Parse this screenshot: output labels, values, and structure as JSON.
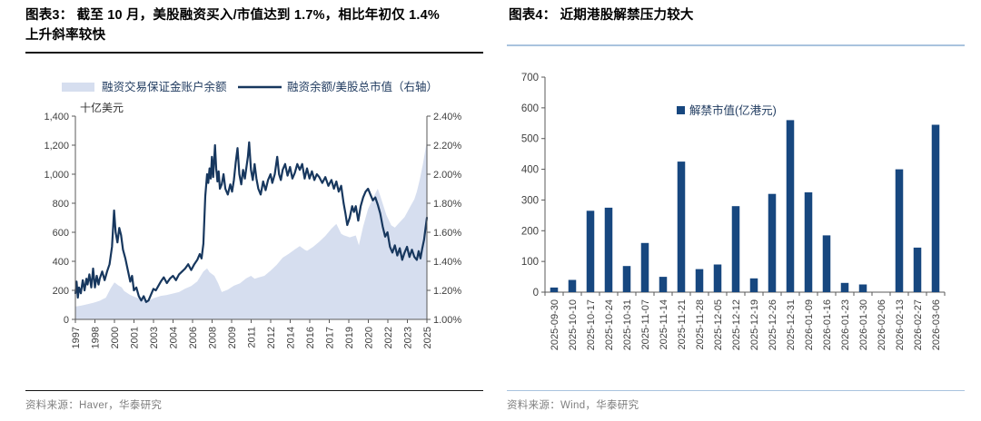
{
  "figure3": {
    "title": "图表3：  截至 10 月，美股融资买入/市值达到 1.7%，相比年初仅 1.4%\n上升斜率较快",
    "source": "资料来源：Haver，华泰研究"
  },
  "figure4": {
    "title": "图表4：  近期港股解禁压力较大",
    "source": "资料来源：Wind，华泰研究"
  },
  "colors": {
    "line_navy": "#17375e",
    "area_fill": "#d6deef",
    "bar_fill": "#17477f",
    "axis_stroke": "#595959",
    "tick_text": "#404040",
    "legend_text": "#1f3a5f",
    "rule_dark": "#141414",
    "rule_light": "#a9c3de",
    "source_gray": "#7f7f7f"
  },
  "chart_data": [
    {
      "type": "area",
      "subtype": "combo-area-line-dual-axis",
      "title": "截至10月，美股融资买入/市值达到1.7%，相比年初仅1.4%，上升斜率较快",
      "legend": [
        {
          "label": "融资交易保证金账户余额",
          "swatch": "area"
        },
        {
          "label": "融资余额/美股总市值（右轴）",
          "swatch": "line"
        }
      ],
      "x_range": [
        1997,
        2025.83
      ],
      "x_tick_labels": [
        "1997",
        "1998",
        "2000",
        "2001",
        "2003",
        "2004",
        "2006",
        "2008",
        "2009",
        "2011",
        "2012",
        "2014",
        "2016",
        "2017",
        "2019",
        "2020",
        "2022",
        "2023",
        "2025"
      ],
      "left_axis": {
        "title": "十亿美元",
        "min": 0,
        "max": 1400,
        "tick_labels": [
          "0",
          "200",
          "400",
          "600",
          "800",
          "1,000",
          "1,200",
          "1,400"
        ]
      },
      "right_axis": {
        "min": 1.0,
        "max": 2.4,
        "tick_labels": [
          "1.00%",
          "1.20%",
          "1.40%",
          "1.60%",
          "1.80%",
          "2.00%",
          "2.20%",
          "2.40%"
        ]
      },
      "series": [
        {
          "name": "融资交易保证金账户余额",
          "type": "area",
          "axis": "left",
          "points": [
            [
              1997.0,
              88
            ],
            [
              1997.5,
              95
            ],
            [
              1998.0,
              105
            ],
            [
              1998.5,
              115
            ],
            [
              1999.0,
              128
            ],
            [
              1999.5,
              150
            ],
            [
              1999.9,
              215
            ],
            [
              2000.2,
              255
            ],
            [
              2000.5,
              235
            ],
            [
              2000.8,
              220
            ],
            [
              2001.0,
              195
            ],
            [
              2001.5,
              168
            ],
            [
              2002.0,
              150
            ],
            [
              2002.5,
              138
            ],
            [
              2003.0,
              130
            ],
            [
              2003.5,
              148
            ],
            [
              2004.0,
              162
            ],
            [
              2004.5,
              168
            ],
            [
              2005.0,
              178
            ],
            [
              2005.5,
              188
            ],
            [
              2006.0,
              212
            ],
            [
              2006.5,
              230
            ],
            [
              2007.0,
              262
            ],
            [
              2007.5,
              330
            ],
            [
              2007.8,
              352
            ],
            [
              2008.0,
              325
            ],
            [
              2008.4,
              300
            ],
            [
              2008.7,
              250
            ],
            [
              2009.0,
              188
            ],
            [
              2009.5,
              205
            ],
            [
              2010.0,
              232
            ],
            [
              2010.5,
              248
            ],
            [
              2011.0,
              282
            ],
            [
              2011.4,
              300
            ],
            [
              2011.7,
              280
            ],
            [
              2012.0,
              288
            ],
            [
              2012.5,
              300
            ],
            [
              2013.0,
              335
            ],
            [
              2013.5,
              375
            ],
            [
              2014.0,
              425
            ],
            [
              2014.5,
              452
            ],
            [
              2015.0,
              482
            ],
            [
              2015.4,
              505
            ],
            [
              2015.8,
              480
            ],
            [
              2016.0,
              472
            ],
            [
              2016.5,
              500
            ],
            [
              2017.0,
              535
            ],
            [
              2017.5,
              575
            ],
            [
              2018.0,
              625
            ],
            [
              2018.4,
              658
            ],
            [
              2018.8,
              590
            ],
            [
              2019.0,
              580
            ],
            [
              2019.5,
              565
            ],
            [
              2020.0,
              578
            ],
            [
              2020.25,
              510
            ],
            [
              2020.6,
              640
            ],
            [
              2021.0,
              760
            ],
            [
              2021.5,
              852
            ],
            [
              2021.8,
              900
            ],
            [
              2022.0,
              852
            ],
            [
              2022.5,
              720
            ],
            [
              2022.9,
              648
            ],
            [
              2023.2,
              632
            ],
            [
              2023.5,
              660
            ],
            [
              2024.0,
              705
            ],
            [
              2024.5,
              782
            ],
            [
              2024.8,
              828
            ],
            [
              2025.0,
              880
            ],
            [
              2025.25,
              965
            ],
            [
              2025.5,
              1070
            ],
            [
              2025.83,
              1230
            ]
          ]
        },
        {
          "name": "融资余额/美股总市值（右轴）",
          "type": "line",
          "axis": "right",
          "points": [
            [
              1997.0,
              1.18
            ],
            [
              1997.1,
              1.26
            ],
            [
              1997.2,
              1.15
            ],
            [
              1997.3,
              1.22
            ],
            [
              1997.45,
              1.18
            ],
            [
              1997.6,
              1.27
            ],
            [
              1997.75,
              1.2
            ],
            [
              1997.9,
              1.28
            ],
            [
              1998.0,
              1.24
            ],
            [
              1998.15,
              1.31
            ],
            [
              1998.3,
              1.22
            ],
            [
              1998.45,
              1.35
            ],
            [
              1998.6,
              1.22
            ],
            [
              1998.75,
              1.3
            ],
            [
              1998.9,
              1.24
            ],
            [
              1999.0,
              1.28
            ],
            [
              1999.2,
              1.33
            ],
            [
              1999.4,
              1.27
            ],
            [
              1999.6,
              1.33
            ],
            [
              1999.8,
              1.38
            ],
            [
              2000.0,
              1.5
            ],
            [
              2000.17,
              1.75
            ],
            [
              2000.3,
              1.6
            ],
            [
              2000.45,
              1.53
            ],
            [
              2000.6,
              1.63
            ],
            [
              2000.75,
              1.58
            ],
            [
              2000.9,
              1.48
            ],
            [
              2001.1,
              1.42
            ],
            [
              2001.3,
              1.34
            ],
            [
              2001.5,
              1.26
            ],
            [
              2001.65,
              1.3
            ],
            [
              2001.8,
              1.2
            ],
            [
              2002.0,
              1.22
            ],
            [
              2002.2,
              1.16
            ],
            [
              2002.4,
              1.13
            ],
            [
              2002.6,
              1.16
            ],
            [
              2002.8,
              1.12
            ],
            [
              2003.0,
              1.13
            ],
            [
              2003.2,
              1.17
            ],
            [
              2003.4,
              1.21
            ],
            [
              2003.6,
              1.2
            ],
            [
              2003.8,
              1.23
            ],
            [
              2004.0,
              1.26
            ],
            [
              2004.25,
              1.29
            ],
            [
              2004.5,
              1.25
            ],
            [
              2004.75,
              1.28
            ],
            [
              2005.0,
              1.3
            ],
            [
              2005.25,
              1.27
            ],
            [
              2005.5,
              1.31
            ],
            [
              2005.75,
              1.33
            ],
            [
              2006.0,
              1.35
            ],
            [
              2006.25,
              1.38
            ],
            [
              2006.5,
              1.34
            ],
            [
              2006.75,
              1.38
            ],
            [
              2007.0,
              1.41
            ],
            [
              2007.2,
              1.45
            ],
            [
              2007.35,
              1.42
            ],
            [
              2007.5,
              1.52
            ],
            [
              2007.65,
              1.85
            ],
            [
              2007.8,
              2.0
            ],
            [
              2007.9,
              1.94
            ],
            [
              2008.0,
              2.04
            ],
            [
              2008.1,
              1.97
            ],
            [
              2008.2,
              2.12
            ],
            [
              2008.3,
              1.98
            ],
            [
              2008.45,
              2.2
            ],
            [
              2008.55,
              2.04
            ],
            [
              2008.65,
              1.95
            ],
            [
              2008.75,
              2.02
            ],
            [
              2008.85,
              1.9
            ],
            [
              2009.0,
              1.93
            ],
            [
              2009.15,
              2.0
            ],
            [
              2009.3,
              1.9
            ],
            [
              2009.5,
              1.86
            ],
            [
              2009.7,
              1.93
            ],
            [
              2009.85,
              1.88
            ],
            [
              2010.0,
              1.96
            ],
            [
              2010.15,
              2.08
            ],
            [
              2010.3,
              2.18
            ],
            [
              2010.45,
              2.0
            ],
            [
              2010.6,
              1.93
            ],
            [
              2010.75,
              2.03
            ],
            [
              2010.9,
              1.97
            ],
            [
              2011.0,
              2.03
            ],
            [
              2011.15,
              2.12
            ],
            [
              2011.25,
              2.22
            ],
            [
              2011.4,
              2.03
            ],
            [
              2011.55,
              1.96
            ],
            [
              2011.7,
              2.07
            ],
            [
              2011.85,
              1.97
            ],
            [
              2012.0,
              1.9
            ],
            [
              2012.2,
              1.86
            ],
            [
              2012.4,
              1.95
            ],
            [
              2012.6,
              1.89
            ],
            [
              2012.8,
              1.96
            ],
            [
              2013.0,
              2.0
            ],
            [
              2013.15,
              1.94
            ],
            [
              2013.35,
              2.0
            ],
            [
              2013.55,
              2.12
            ],
            [
              2013.7,
              2.0
            ],
            [
              2013.85,
              1.96
            ],
            [
              2014.0,
              2.03
            ],
            [
              2014.2,
              2.07
            ],
            [
              2014.4,
              1.99
            ],
            [
              2014.6,
              2.05
            ],
            [
              2014.8,
              1.97
            ],
            [
              2015.0,
              2.01
            ],
            [
              2015.2,
              2.07
            ],
            [
              2015.4,
              2.03
            ],
            [
              2015.6,
              2.07
            ],
            [
              2015.8,
              1.97
            ],
            [
              2016.0,
              2.04
            ],
            [
              2016.2,
              1.97
            ],
            [
              2016.4,
              2.02
            ],
            [
              2016.6,
              1.96
            ],
            [
              2016.8,
              2.0
            ],
            [
              2017.0,
              1.98
            ],
            [
              2017.25,
              1.94
            ],
            [
              2017.5,
              1.98
            ],
            [
              2017.75,
              1.92
            ],
            [
              2018.0,
              1.96
            ],
            [
              2018.2,
              1.9
            ],
            [
              2018.4,
              1.95
            ],
            [
              2018.6,
              1.88
            ],
            [
              2018.8,
              1.92
            ],
            [
              2019.0,
              1.8
            ],
            [
              2019.15,
              1.73
            ],
            [
              2019.3,
              1.65
            ],
            [
              2019.5,
              1.7
            ],
            [
              2019.7,
              1.78
            ],
            [
              2019.85,
              1.74
            ],
            [
              2020.0,
              1.78
            ],
            [
              2020.2,
              1.68
            ],
            [
              2020.4,
              1.78
            ],
            [
              2020.6,
              1.84
            ],
            [
              2020.8,
              1.88
            ],
            [
              2021.0,
              1.9
            ],
            [
              2021.2,
              1.86
            ],
            [
              2021.4,
              1.82
            ],
            [
              2021.6,
              1.84
            ],
            [
              2021.8,
              1.79
            ],
            [
              2022.0,
              1.73
            ],
            [
              2022.2,
              1.64
            ],
            [
              2022.4,
              1.57
            ],
            [
              2022.6,
              1.6
            ],
            [
              2022.8,
              1.5
            ],
            [
              2023.0,
              1.46
            ],
            [
              2023.2,
              1.51
            ],
            [
              2023.4,
              1.44
            ],
            [
              2023.6,
              1.49
            ],
            [
              2023.8,
              1.41
            ],
            [
              2024.0,
              1.46
            ],
            [
              2024.2,
              1.5
            ],
            [
              2024.4,
              1.43
            ],
            [
              2024.6,
              1.48
            ],
            [
              2024.8,
              1.43
            ],
            [
              2025.0,
              1.41
            ],
            [
              2025.15,
              1.47
            ],
            [
              2025.3,
              1.42
            ],
            [
              2025.45,
              1.49
            ],
            [
              2025.6,
              1.55
            ],
            [
              2025.72,
              1.63
            ],
            [
              2025.83,
              1.7
            ]
          ]
        }
      ]
    },
    {
      "type": "bar",
      "title": "近期港股解禁压力较大",
      "legend": [
        "解禁市值(亿港元)"
      ],
      "categories": [
        "2025-09-30",
        "2025-10-10",
        "2025-10-17",
        "2025-10-24",
        "2025-10-31",
        "2025-11-07",
        "2025-11-14",
        "2025-11-21",
        "2025-11-28",
        "2025-12-05",
        "2025-12-12",
        "2025-12-19",
        "2025-12-26",
        "2025-12-31",
        "2026-01-09",
        "2026-01-16",
        "2026-01-23",
        "2026-01-30",
        "2026-02-06",
        "2026-02-13",
        "2026-02-27",
        "2026-03-06"
      ],
      "values": [
        15,
        40,
        265,
        275,
        85,
        160,
        50,
        425,
        75,
        90,
        280,
        45,
        320,
        560,
        325,
        185,
        30,
        25,
        0,
        400,
        145,
        545
      ],
      "y_axis": {
        "min": 0,
        "max": 700,
        "step": 100,
        "tick_labels": [
          "0",
          "100",
          "200",
          "300",
          "400",
          "500",
          "600",
          "700"
        ]
      }
    }
  ]
}
